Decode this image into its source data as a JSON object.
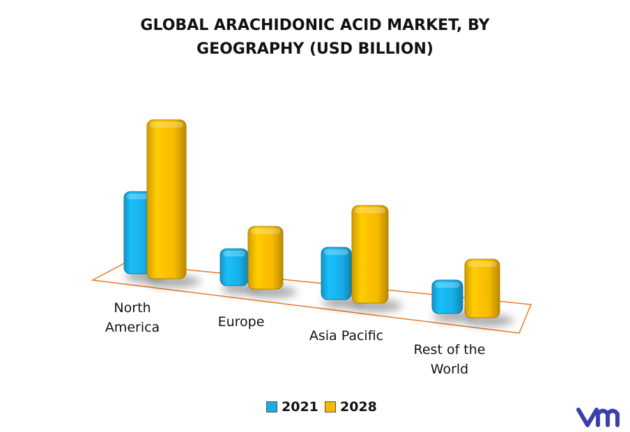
{
  "chart_data": {
    "type": "bar3d",
    "title": "GLOBAL ARACHIDONIC ACID MARKET, BY GEOGRAPHY (USD BILLION)",
    "categories": [
      "North America",
      "Europe",
      "Asia Pacific",
      "Rest of the World"
    ],
    "series": [
      {
        "name": "2021",
        "color": "#17aee6",
        "values": [
          118,
          53,
          75,
          48
        ]
      },
      {
        "name": "2028",
        "color": "#f7b900",
        "values": [
          228,
          90,
          140,
          84
        ]
      }
    ],
    "legend": "bottom"
  }
}
